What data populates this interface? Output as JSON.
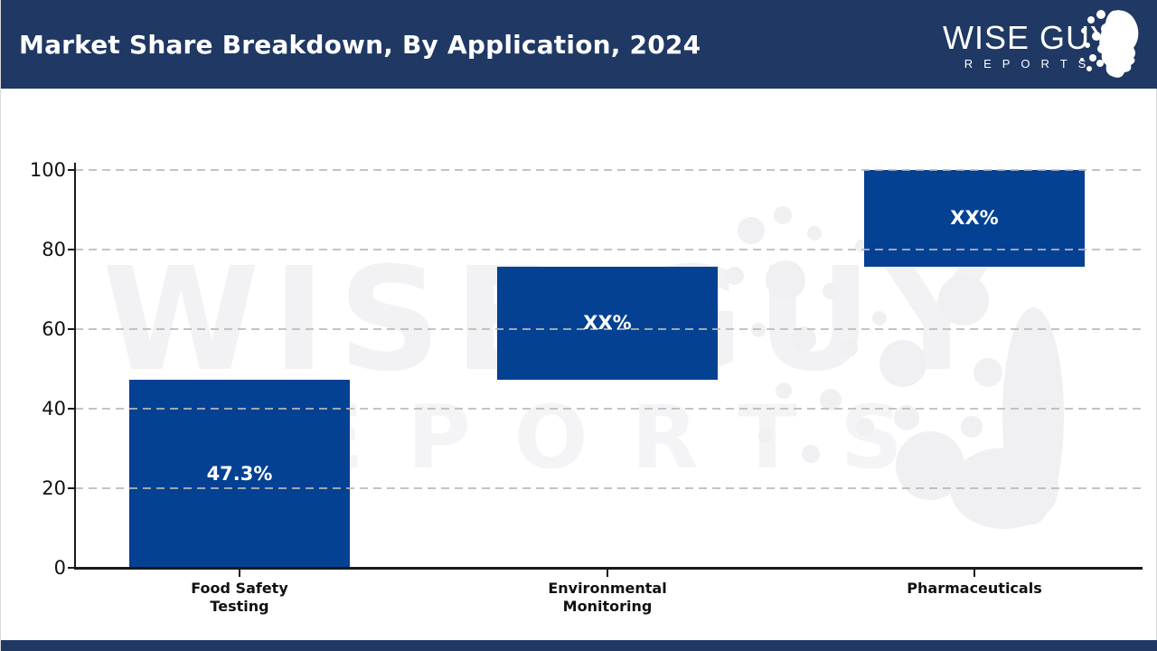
{
  "header": {
    "title": "Market Share Breakdown, By Application, 2024",
    "logo": {
      "name_top": "WISE GUY",
      "name_bottom": "REPORTS"
    }
  },
  "watermark": {
    "line1": "WISE GUY",
    "line2": "REPORTS"
  },
  "colors": {
    "header_bg": "#1f3864",
    "footer_bg": "#1f3864",
    "bar": "#044193",
    "bar_label_text": "#ffffff",
    "gridline": "#b9b9b9",
    "axis": "#1a1a1a",
    "watermark": "#f2f2f4"
  },
  "chart_data": {
    "type": "bar",
    "variant": "floating-segment-breakdown",
    "title": "Market Share Breakdown, By Application, 2024",
    "categories": [
      [
        "Food Safety",
        "Testing"
      ],
      [
        "Environmental",
        "Monitoring"
      ],
      [
        "Pharmaceuticals"
      ]
    ],
    "segments": [
      {
        "category": "Food Safety Testing",
        "start": 0,
        "end": 47.3,
        "label": "47.3%"
      },
      {
        "category": "Environmental Monitoring",
        "start": 47.3,
        "end": 75.7,
        "label": "XX%"
      },
      {
        "category": "Pharmaceuticals",
        "start": 75.7,
        "end": 100,
        "label": "XX%"
      }
    ],
    "ylim": [
      0,
      100
    ],
    "yticks": [
      0,
      20,
      40,
      60,
      80,
      100
    ],
    "xlabel": "",
    "ylabel": "",
    "grid": "horizontal-dashed",
    "legend": null
  }
}
